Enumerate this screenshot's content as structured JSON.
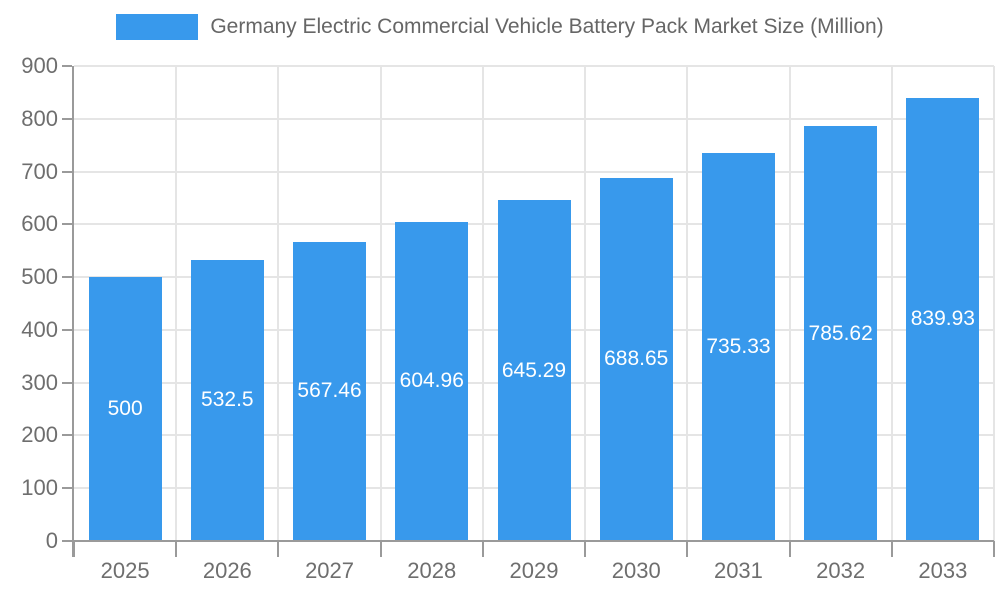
{
  "chart_data": {
    "type": "bar",
    "legend_label": "Germany Electric Commercial Vehicle Battery Pack Market Size (Million)",
    "legend_position": "top",
    "categories": [
      "2025",
      "2026",
      "2027",
      "2028",
      "2029",
      "2030",
      "2031",
      "2032",
      "2033"
    ],
    "values": [
      500,
      532.5,
      567.46,
      604.96,
      645.29,
      688.65,
      735.33,
      785.62,
      839.93
    ],
    "value_labels": [
      "500",
      "532.5",
      "567.46",
      "604.96",
      "645.29",
      "688.65",
      "735.33",
      "785.62",
      "839.93"
    ],
    "xlabel": "",
    "ylabel": "",
    "ylim": [
      0,
      900
    ],
    "yticks": [
      0,
      100,
      200,
      300,
      400,
      500,
      600,
      700,
      800,
      900
    ],
    "grid": true,
    "colors": {
      "bar": "#3899ec",
      "grid": "#e5e5e5",
      "axis": "#9a9a9a",
      "tick_label": "#6e6e6e",
      "legend_text": "#666666",
      "value_label": "#ffffff",
      "background": "#ffffff"
    }
  }
}
